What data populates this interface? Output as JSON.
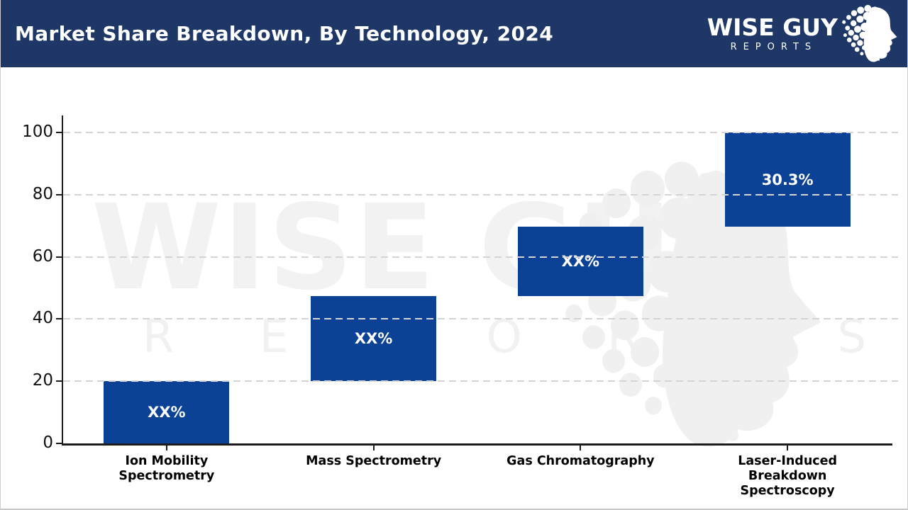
{
  "header": {
    "title": "Market Share Breakdown, By Technology, 2024",
    "logo": {
      "name": "WISE GUY",
      "subtitle": "REPORTS"
    }
  },
  "watermark": {
    "line1": "WISE GUY",
    "line2": "R E P O R T S"
  },
  "colors": {
    "header_bg": "#1f3766",
    "bar": "#0b4295",
    "grid": "#d4d4d4",
    "axis": "#1c1c1c",
    "bar_label": "#ffffff",
    "watermark": "#f1f1f1"
  },
  "chart_data": {
    "type": "bar",
    "subtype": "waterfall",
    "title": "Market Share Breakdown, By Technology, 2024",
    "categories": [
      "Ion Mobility Spectrometry",
      "Mass Spectrometry",
      "Gas Chromatography",
      "Laser-Induced Breakdown Spectroscopy"
    ],
    "category_lines": [
      [
        "Ion Mobility",
        "Spectrometry"
      ],
      [
        "Mass Spectrometry"
      ],
      [
        "Gas Chromatography"
      ],
      [
        "Laser-Induced",
        "Breakdown",
        "Spectroscopy"
      ]
    ],
    "segments": [
      {
        "label": "XX%",
        "start": 0,
        "end": 20
      },
      {
        "label": "XX%",
        "start": 20,
        "end": 47.5
      },
      {
        "label": "XX%",
        "start": 47.5,
        "end": 69.7
      },
      {
        "label": "30.3%",
        "start": 69.7,
        "end": 100
      }
    ],
    "yticks": [
      0,
      20,
      40,
      60,
      80,
      100
    ],
    "ylim": [
      0,
      105.5
    ],
    "xlabel": "",
    "ylabel": "",
    "grid": "horizontal-dashed",
    "legend": "none"
  }
}
